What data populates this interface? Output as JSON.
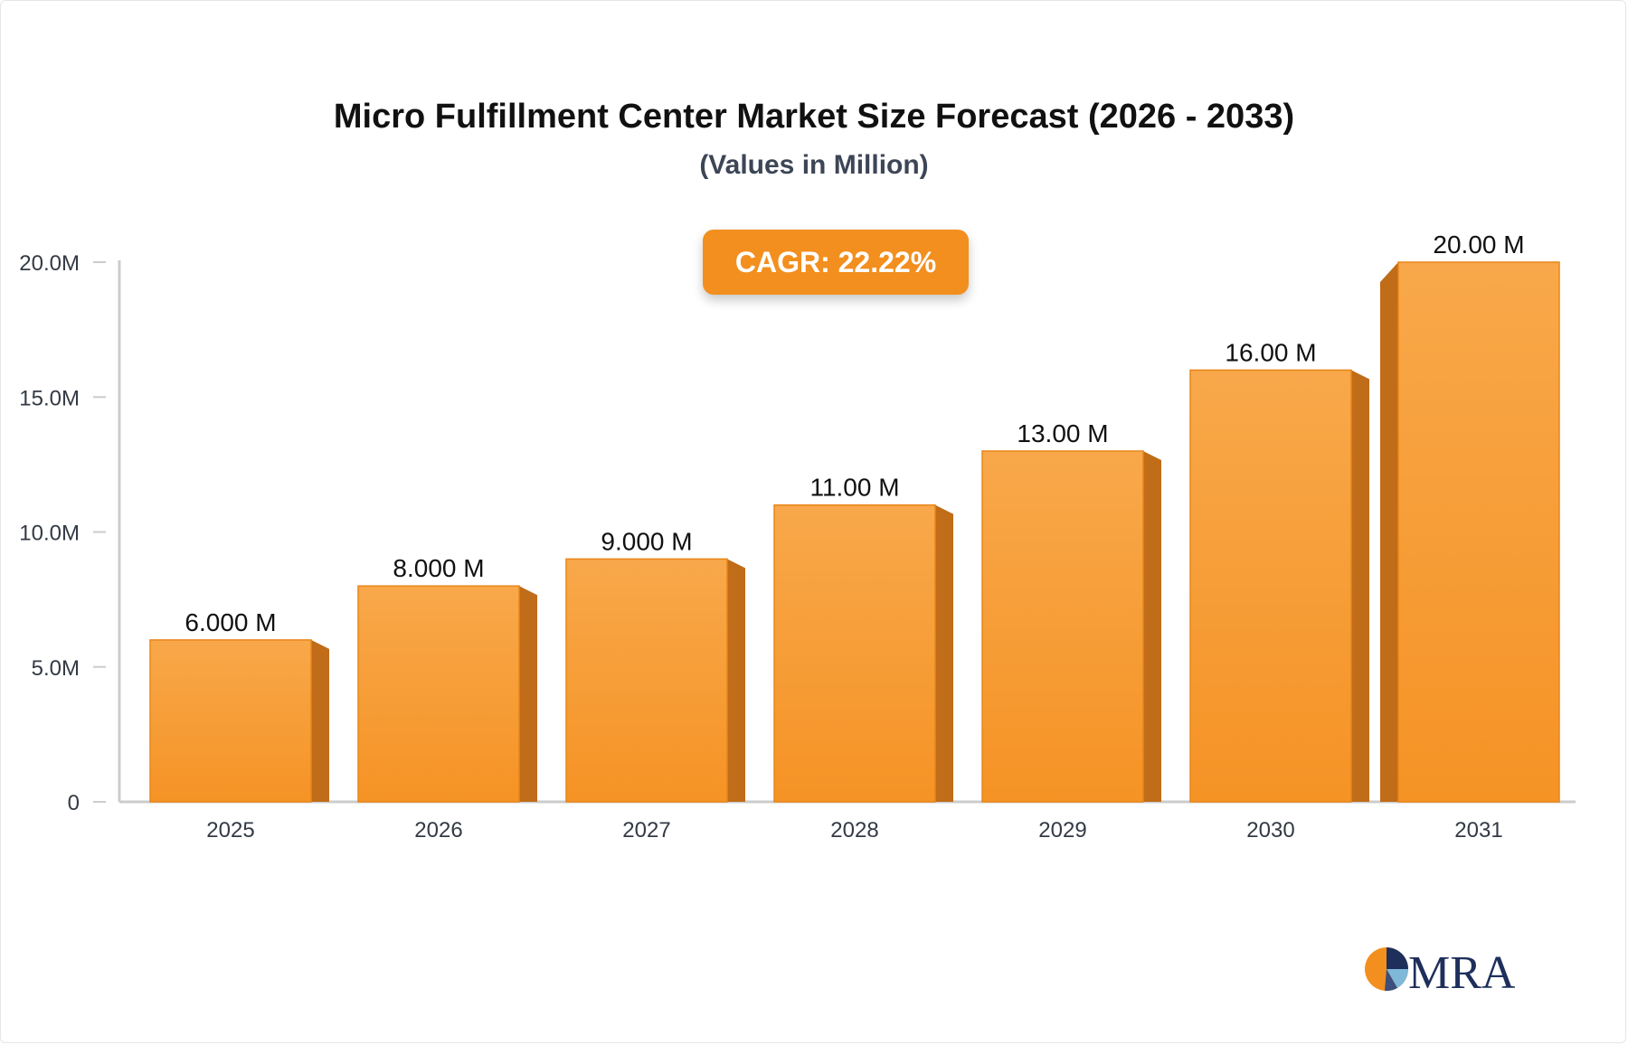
{
  "chart_data": {
    "type": "bar",
    "title": "Micro Fulfillment Center Market Size Forecast (2026 - 2033)",
    "subtitle": "(Values in Million)",
    "categories": [
      "2025",
      "2026",
      "2027",
      "2028",
      "2029",
      "2030",
      "2031"
    ],
    "values": [
      6.0,
      8.0,
      9.0,
      11.0,
      13.0,
      16.0,
      20.0
    ],
    "value_labels": [
      "6.000 M",
      "8.000 M",
      "9.000 M",
      "11.00 M",
      "13.00 M",
      "16.00 M",
      "20.00 M"
    ],
    "y_ticks": [
      0,
      5,
      10,
      15,
      20
    ],
    "y_tick_labels": [
      "0",
      "5.0M",
      "10.0M",
      "15.0M",
      "20.0M"
    ],
    "ylim": [
      0,
      20
    ],
    "xlabel": "",
    "ylabel": "",
    "grid": false,
    "legend": "none",
    "colors": {
      "bar_top": "#f8a84a",
      "bar_bottom": "#f59325",
      "bar_side": "#c06c18",
      "axis": "#cccccc",
      "tick_text": "#333a44",
      "label_text": "#111111"
    }
  },
  "badge": {
    "cagr_label": "CAGR: 22.22%",
    "color": "#f28f1e"
  },
  "logo": {
    "text": "MRA",
    "icon": "pie-logo-icon"
  }
}
